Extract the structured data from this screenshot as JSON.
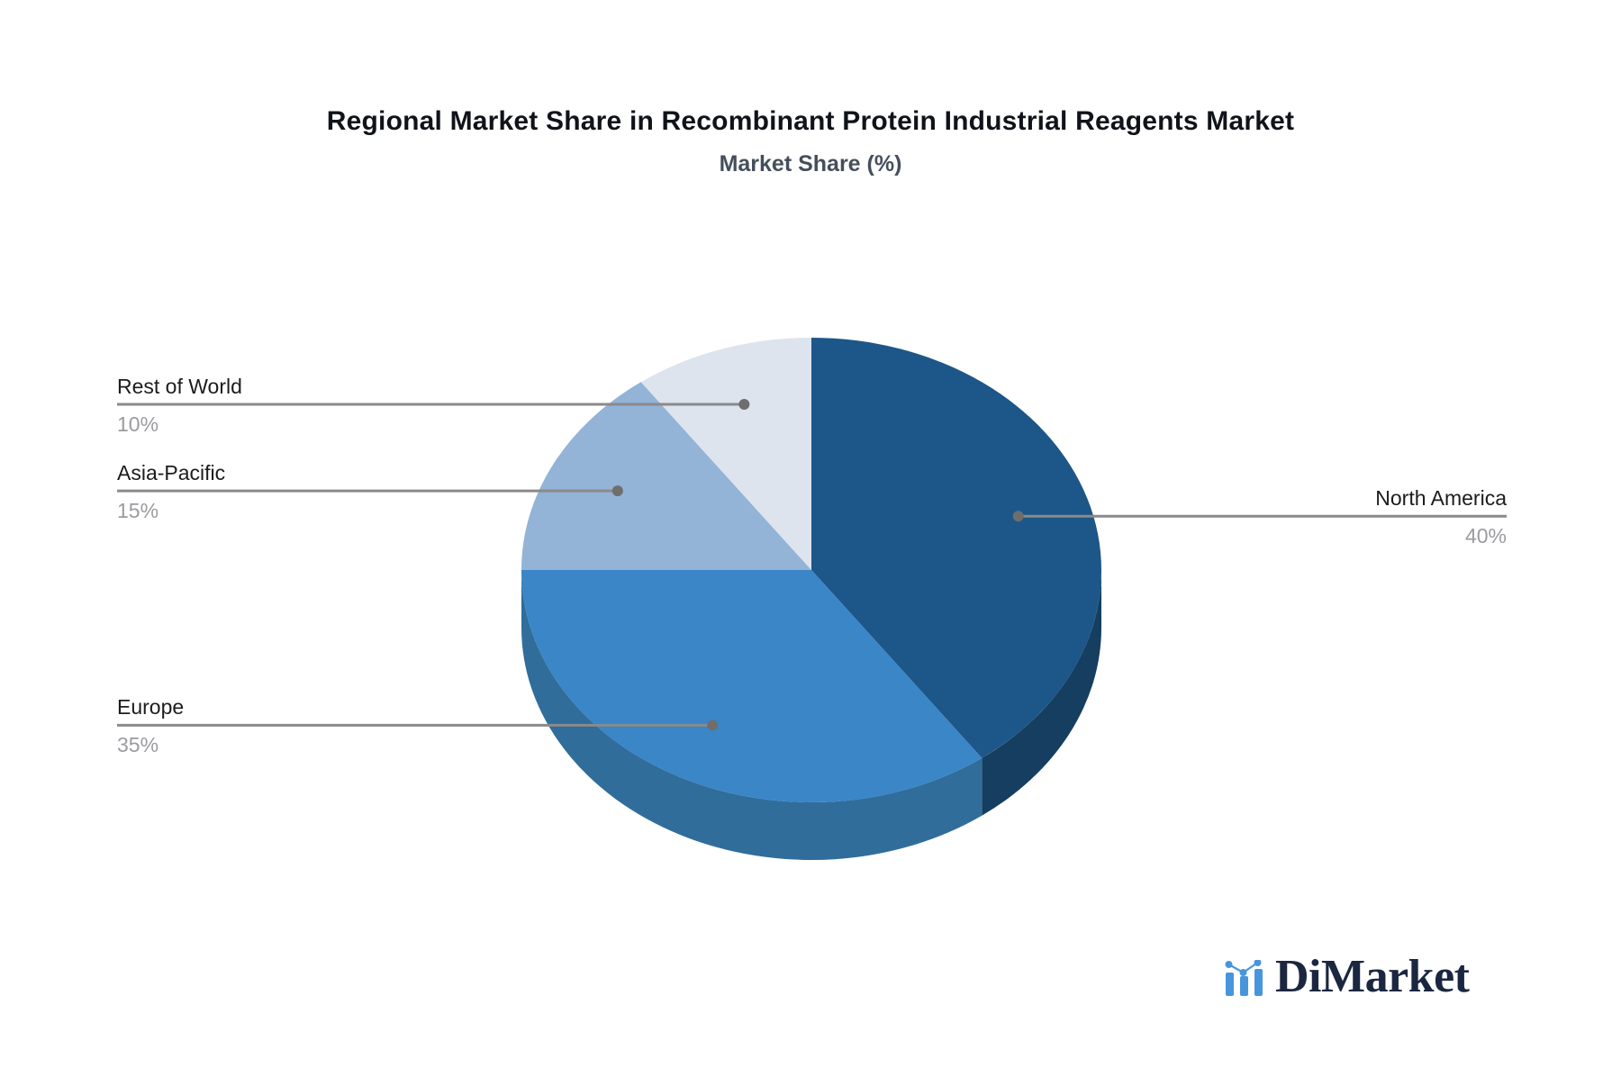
{
  "title": "Regional Market Share in Recombinant Protein Industrial Reagents Market",
  "subtitle": "Market Share (%)",
  "brand": {
    "name": "DiMarket"
  },
  "chart_data": {
    "type": "pie",
    "title": "Regional Market Share in Recombinant Protein Industrial Reagents Market",
    "subtitle": "Market Share (%)",
    "unit": "%",
    "effect_3d": true,
    "start_angle_deg": 0,
    "direction": "clockwise",
    "legend": "none",
    "categories": [
      "North America",
      "Europe",
      "Asia-Pacific",
      "Rest of World"
    ],
    "values": [
      40,
      35,
      15,
      10
    ],
    "labels": [
      {
        "name": "North America",
        "value_label": "40%",
        "side": "right"
      },
      {
        "name": "Europe",
        "value_label": "35%",
        "side": "left"
      },
      {
        "name": "Asia-Pacific",
        "value_label": "15%",
        "side": "left"
      },
      {
        "name": "Rest of World",
        "value_label": "10%",
        "side": "left"
      }
    ],
    "colors": [
      "#1d5688",
      "#3a86c7",
      "#93b3d7",
      "#dde4ee"
    ],
    "side_colors": [
      "#153e60",
      "#306d9b",
      "#7ea3c9",
      "#c9d3e2"
    ],
    "leader_line_color": "#8a8a8a",
    "leader_dot_color": "#6e6e6e",
    "label_name_color": "#1c1c1c",
    "label_value_color": "#9b9ba0"
  }
}
